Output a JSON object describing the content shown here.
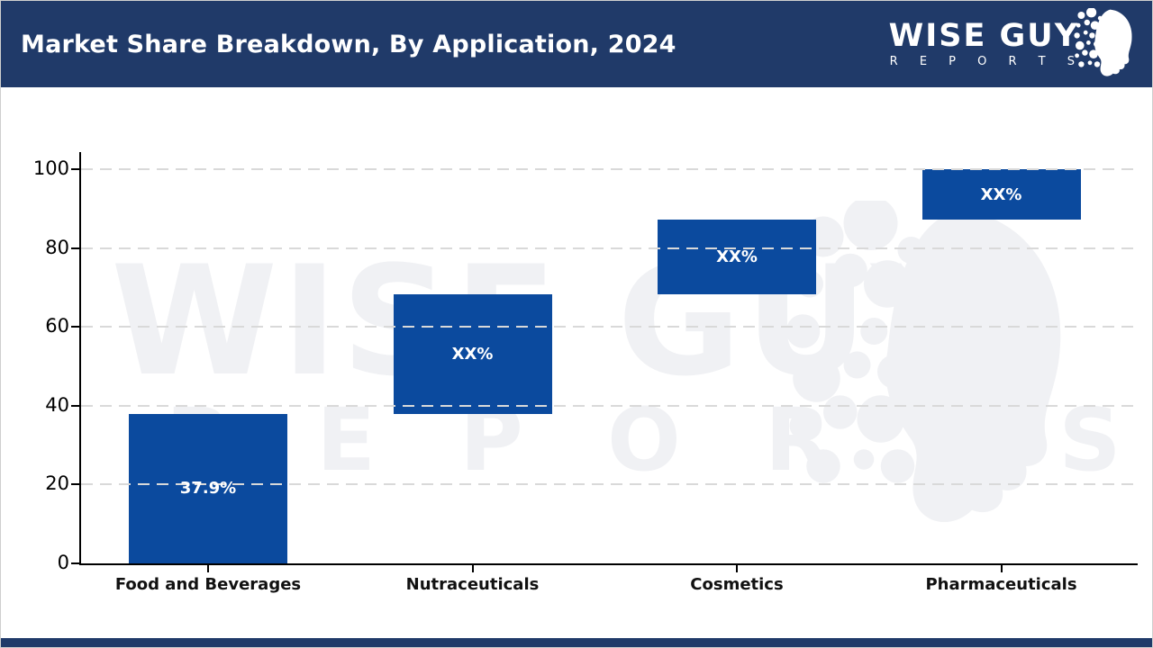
{
  "header": {
    "title": "Market Share Breakdown, By Application, 2024",
    "logo": {
      "line1": "WISE GUY",
      "line2": "R E P O R T S"
    }
  },
  "watermark": {
    "line1": "WISE GUY",
    "line2": "R E P O R T S"
  },
  "footer": {},
  "colors": {
    "header_bg": "#203a69",
    "footer_bg": "#203a69",
    "bar": "#0b4a9e",
    "grid": "#d9d9d9",
    "axis": "#000000",
    "watermark": "#f0f1f4",
    "bar_label": "#ffffff"
  },
  "chart_data": {
    "type": "bar",
    "subtype": "stacked_percentage_waterfall",
    "title": "Market Share Breakdown, By Application, 2024",
    "categories": [
      "Food and Beverages",
      "Nutraceuticals",
      "Cosmetics",
      "Pharmaceuticals"
    ],
    "bars": [
      {
        "category": "Food and Beverages",
        "start": 0,
        "end": 37.9,
        "label": "37.9%",
        "value_pct": 37.9
      },
      {
        "category": "Nutraceuticals",
        "start": 37.9,
        "end": 68.3,
        "label": "XX%",
        "value_pct": 30.4
      },
      {
        "category": "Cosmetics",
        "start": 68.3,
        "end": 87.2,
        "label": "XX%",
        "value_pct": 18.9
      },
      {
        "category": "Pharmaceuticals",
        "start": 87.2,
        "end": 100,
        "label": "XX%",
        "value_pct": 12.8
      }
    ],
    "yticks": [
      0,
      20,
      40,
      60,
      80,
      100
    ],
    "ylim": [
      0,
      104
    ],
    "xlabel": "",
    "ylabel": "",
    "grid": "horizontal-dashed",
    "legend": "none",
    "bar_color": "#0b4a9e"
  }
}
